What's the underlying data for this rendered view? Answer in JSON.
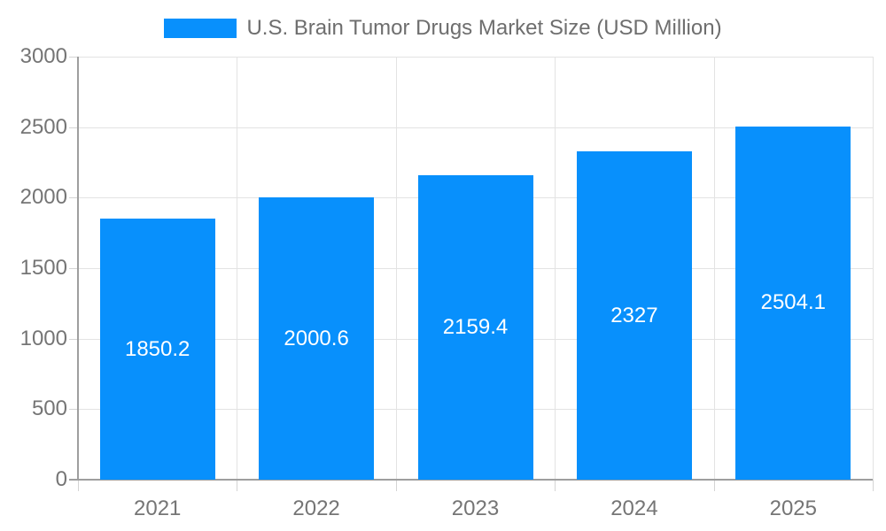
{
  "chart_data": {
    "type": "bar",
    "title": "U.S. Brain Tumor Drugs Market Size (USD Million)",
    "categories": [
      "2021",
      "2022",
      "2023",
      "2024",
      "2025"
    ],
    "values": [
      1850.2,
      2000.6,
      2159.4,
      2327,
      2504.1
    ],
    "bar_labels": [
      "1850.2",
      "2000.6",
      "2159.4",
      "2327",
      "2504.1"
    ],
    "xlabel": "",
    "ylabel": "",
    "ylim": [
      0,
      3000
    ],
    "yticks": [
      0,
      500,
      1000,
      1500,
      2000,
      2500,
      3000
    ],
    "grid": true,
    "legend_position": "top-center",
    "colors": {
      "bar": "#0890fc",
      "bar_label": "#ffffff",
      "axis_label": "#757575",
      "legend_text": "#6e6e6e",
      "gridline": "#e3e3e3",
      "tick": "#d4d4d4",
      "axis_line": "#9e9e9e",
      "background": "#ffffff"
    }
  }
}
